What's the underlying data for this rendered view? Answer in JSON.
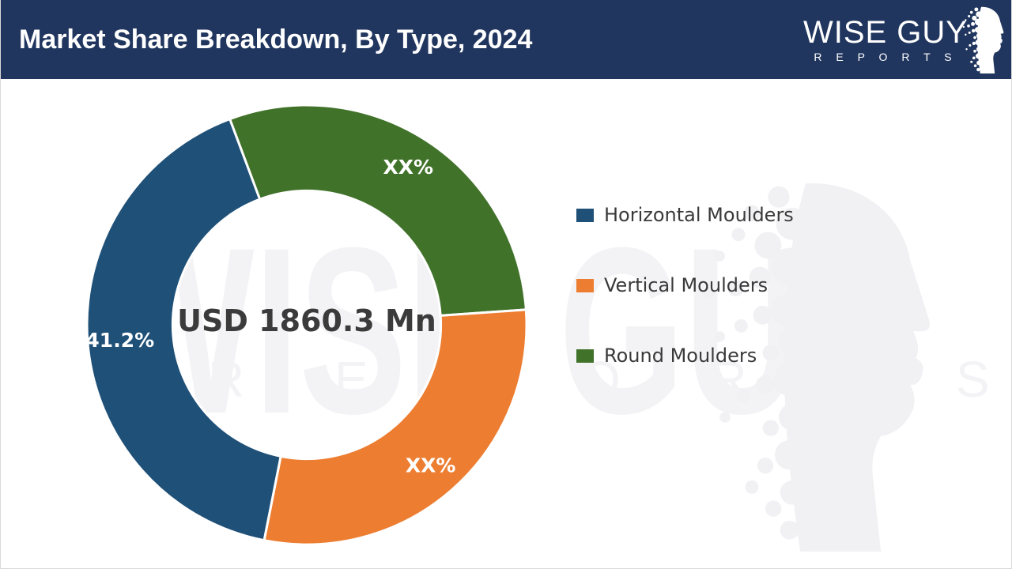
{
  "header": {
    "title": "Market Share Breakdown, By Type, 2024",
    "logo": {
      "name": "WISE GUY",
      "sub": "R E P O R T S"
    }
  },
  "watermark": {
    "line1": "WISE GUY",
    "line2": "R E P O R T S"
  },
  "legend": {
    "items": [
      {
        "label": "Horizontal Moulders",
        "color": "#1F5078"
      },
      {
        "label": "Vertical Moulders",
        "color": "#ED7D31"
      },
      {
        "label": "Round Moulders",
        "color": "#41722A"
      }
    ]
  },
  "chart_data": {
    "type": "pie",
    "subtype": "donut",
    "title": "Market Share Breakdown, By Type, 2024",
    "center_label": "USD 1860.3 Mn",
    "start_angle_deg": -20.5,
    "inner_radius_ratio": 0.61,
    "legend_position": "right",
    "segments": [
      {
        "name": "Round Moulders",
        "display_label": "XX%",
        "value_pct": 29.6,
        "color": "#41722A"
      },
      {
        "name": "Vertical Moulders",
        "display_label": "XX%",
        "value_pct": 29.2,
        "color": "#ED7D31"
      },
      {
        "name": "Horizontal Moulders",
        "display_label": "41.2%",
        "value_pct": 41.2,
        "color": "#1F5078"
      }
    ],
    "colors": {
      "header_bg": "#21365F",
      "center_text": "#3B3B3B",
      "segment_label_text": "#FFFFFF",
      "border": "#D9D9D9"
    }
  }
}
